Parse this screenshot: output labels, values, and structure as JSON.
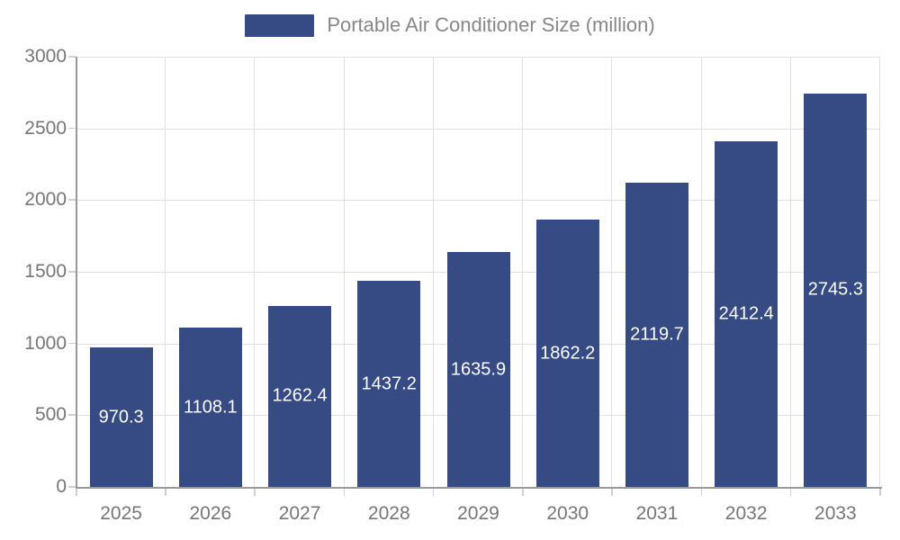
{
  "chart_data": {
    "type": "bar",
    "title": "Portable Air Conditioner Size (million)",
    "categories": [
      "2025",
      "2026",
      "2027",
      "2028",
      "2029",
      "2030",
      "2031",
      "2032",
      "2033"
    ],
    "series": [
      {
        "name": "Portable Air Conditioner Size (million)",
        "values": [
          970.3,
          1108.1,
          1262.4,
          1437.2,
          1635.9,
          1862.2,
          2119.7,
          2412.4,
          2745.3
        ]
      }
    ],
    "xlabel": "",
    "ylabel": "",
    "ylim": [
      0,
      3000
    ],
    "yticks": [
      0,
      500,
      1000,
      1500,
      2000,
      2500,
      3000
    ],
    "grid": true,
    "legend_position": "top-center",
    "value_label_position": "inside-center",
    "colors": {
      "bar": "#364A83",
      "grid_line": "#E2E2E2",
      "tick_line": "#CFCFCF",
      "axis_line": "#999999",
      "axis_text": "#767676",
      "legend_text": "#878787",
      "value_text": "#FFFFFF",
      "background": "#FFFFFF"
    }
  }
}
